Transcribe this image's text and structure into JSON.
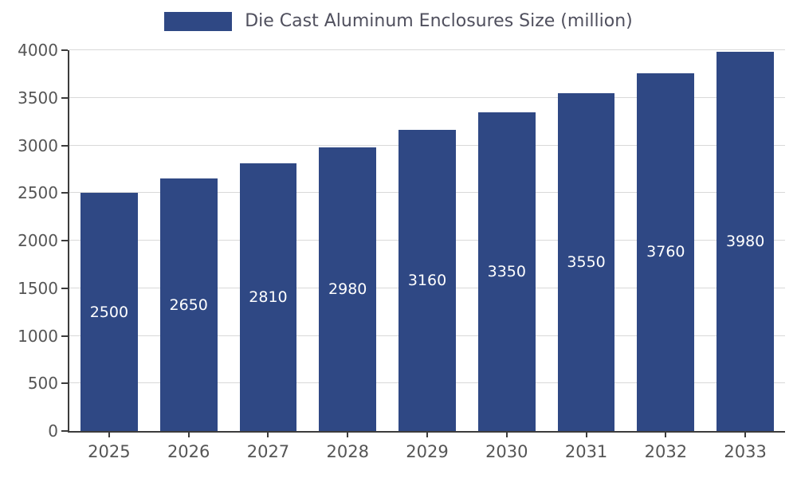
{
  "chart_data": {
    "type": "bar",
    "title": "Die Cast Aluminum Enclosures Size (million)",
    "categories": [
      "2025",
      "2026",
      "2027",
      "2028",
      "2029",
      "2030",
      "2031",
      "2032",
      "2033"
    ],
    "values": [
      2500,
      2650,
      2810,
      2980,
      3160,
      3350,
      3550,
      3760,
      3980
    ],
    "xlabel": "",
    "ylabel": "",
    "ylim": [
      0,
      4000
    ],
    "yticks": [
      0,
      500,
      1000,
      1500,
      2000,
      2500,
      3000,
      3500,
      4000
    ],
    "grid": true,
    "legend_position": "top",
    "colors": {
      "bar": "#2f4884",
      "bar_label": "#ffffff",
      "axis": "#3c3c3c",
      "grid": "#d9d9d9",
      "tick_label": "#555555",
      "legend_text": "#50505e"
    }
  }
}
